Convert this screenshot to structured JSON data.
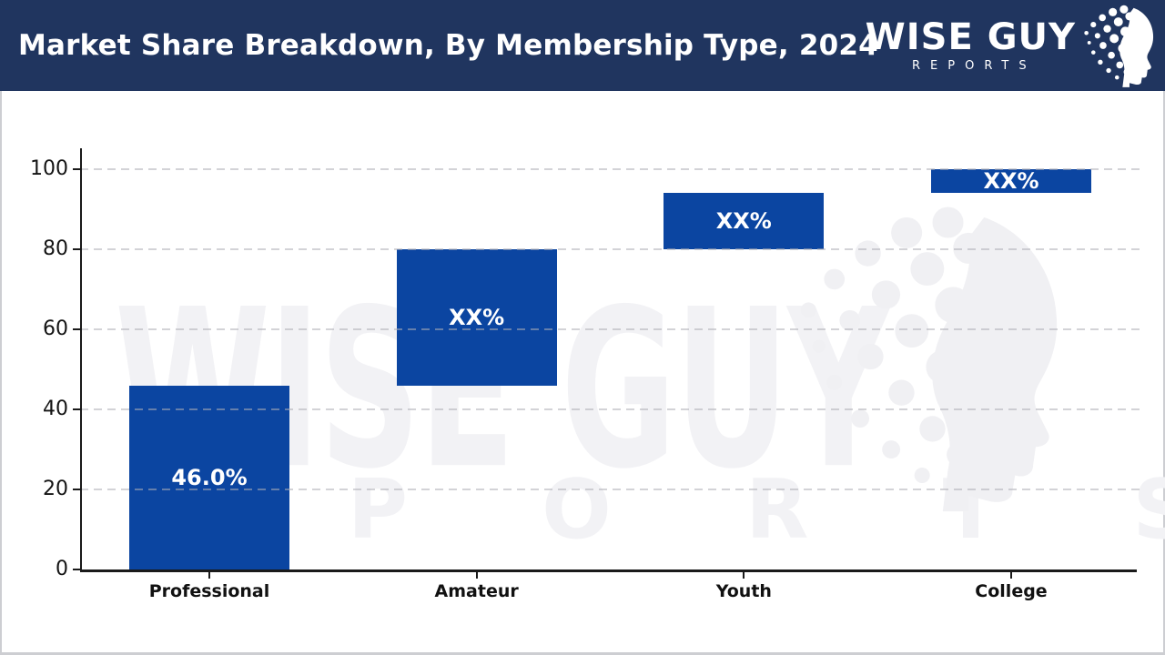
{
  "header": {
    "title": "Market Share Breakdown, By Membership Type, 2024",
    "logo": {
      "wordmark": "WISE GUY",
      "subtext": "REPORTS"
    }
  },
  "watermark": {
    "line1": "WISE GUY",
    "line2": "P O R T S"
  },
  "colors": {
    "header_bg": "#20355f",
    "bar": "#0b45a1",
    "bar_label": "#ffffff",
    "gridline": "#d9d9d9",
    "axis": "#1a1a1a",
    "watermark": "#f2f2f5",
    "edge_border": "#cdced2"
  },
  "chart_data": {
    "type": "bar",
    "variant": "waterfall",
    "title": "Market Share Breakdown, By Membership Type, 2024",
    "categories": [
      "Professional",
      "Amateur",
      "Youth",
      "College"
    ],
    "segments": [
      {
        "category": "Professional",
        "start": 0,
        "end": 46,
        "value": 46,
        "label": "46.0%"
      },
      {
        "category": "Amateur",
        "start": 46,
        "end": 80,
        "value": 34,
        "label": "XX%"
      },
      {
        "category": "Youth",
        "start": 80,
        "end": 94,
        "value": 14,
        "label": "XX%"
      },
      {
        "category": "College",
        "start": 94,
        "end": 100,
        "value": 6,
        "label": "XX%"
      }
    ],
    "xlabel": "",
    "ylabel": "",
    "yticks": [
      0,
      20,
      40,
      60,
      80,
      100
    ],
    "ylim": [
      0,
      105
    ],
    "grid": "horizontal-dashed-over-bars",
    "legend": "none"
  }
}
